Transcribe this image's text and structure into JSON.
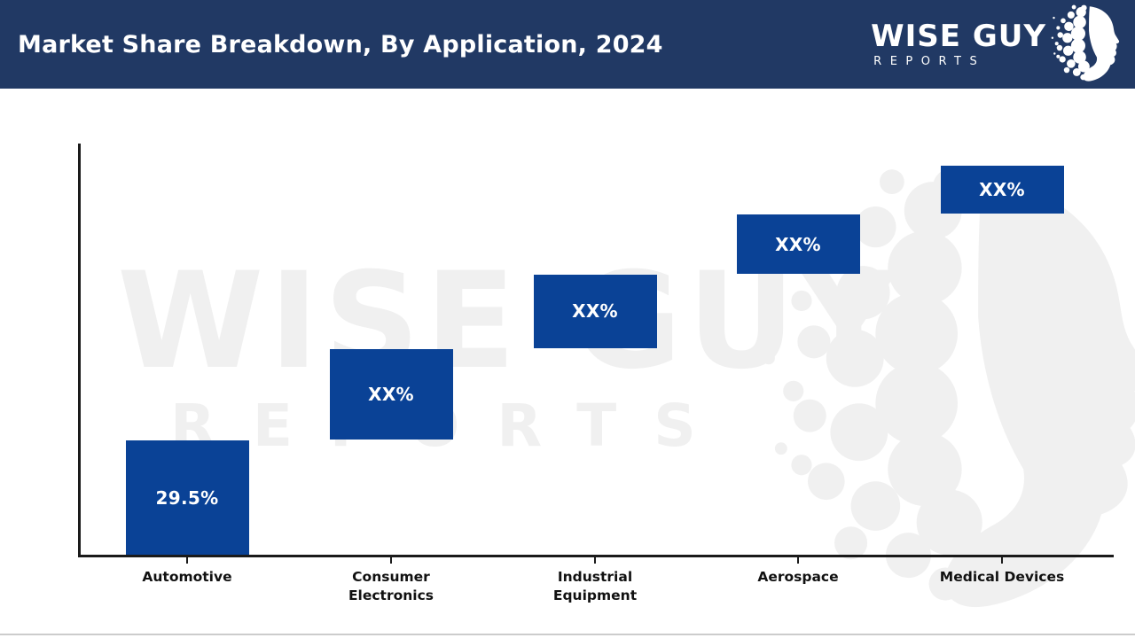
{
  "header": {
    "title": "Market Share Breakdown, By Application, 2024",
    "brand": {
      "line1": "WISE GUY",
      "line2": "REPORTS"
    }
  },
  "watermark": {
    "line1": "WISE GUY",
    "line2": "REPORTS"
  },
  "colors": {
    "header_bg": "#213964",
    "bar": "#0a4296",
    "bar_label": "#ffffff",
    "grid": "#dadada",
    "axis": "#1a1a1a",
    "watermark": "#f0f0f0"
  },
  "chart_data": {
    "type": "bar",
    "variant": "waterfall-stacked-segments",
    "title": "Market Share Breakdown, By Application, 2024",
    "xlabel": "",
    "ylabel": "",
    "ylim": [
      0,
      105
    ],
    "yticks": [
      0,
      20,
      40,
      60,
      80,
      100
    ],
    "grid": "horizontal-dashed",
    "legend": "none",
    "categories": [
      "Automotive",
      "Consumer Electronics",
      "Industrial Equipment",
      "Aerospace",
      "Medical Devices"
    ],
    "segments": [
      {
        "category": "Automotive",
        "start": 0,
        "end": 29.5,
        "value_pct": 29.5,
        "label": "29.5%"
      },
      {
        "category": "Consumer Electronics",
        "start": 29.5,
        "end": 53,
        "value_pct": 23.5,
        "label": "XX%"
      },
      {
        "category": "Industrial Equipment",
        "start": 53,
        "end": 72,
        "value_pct": 19,
        "label": "XX%"
      },
      {
        "category": "Aerospace",
        "start": 72,
        "end": 87.5,
        "value_pct": 15.5,
        "label": "XX%"
      },
      {
        "category": "Medical Devices",
        "start": 87.5,
        "end": 100,
        "value_pct": 12.5,
        "label": "XX%"
      }
    ]
  }
}
